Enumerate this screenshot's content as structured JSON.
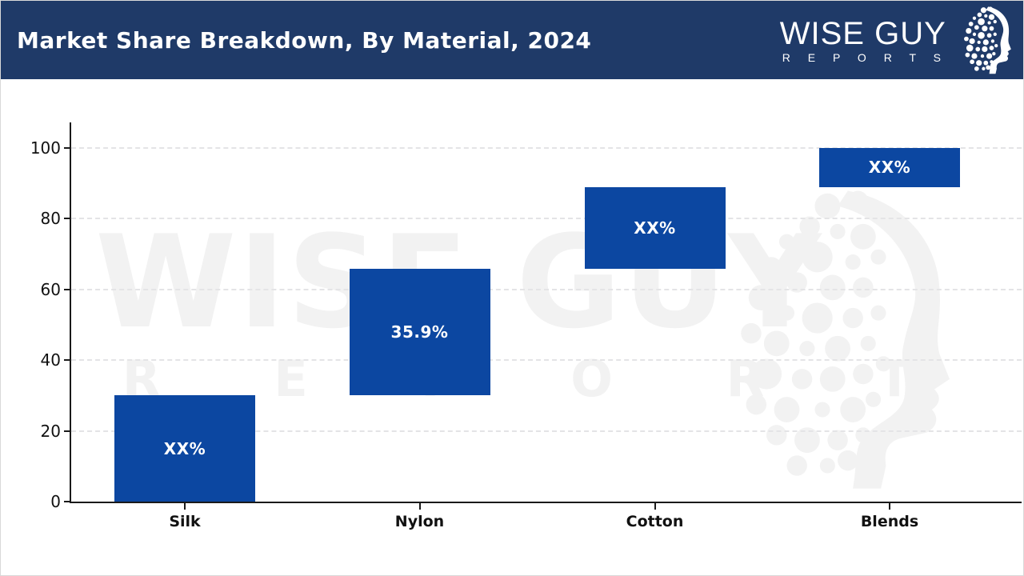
{
  "header": {
    "title": "Market Share Breakdown, By Material, 2024",
    "bg_color": "#1f3a68"
  },
  "logo": {
    "line1": "WISE GUY",
    "line2": "R E P O R T S"
  },
  "watermark": {
    "line1": "WISE GUY",
    "line2": "R E P O R T S"
  },
  "chart_data": {
    "type": "bar",
    "subtype": "floating-waterfall",
    "title": "Market Share Breakdown, By Material, 2024",
    "categories": [
      "Silk",
      "Nylon",
      "Cotton",
      "Blends"
    ],
    "segments": [
      {
        "category": "Silk",
        "from": 0,
        "to": 30,
        "label": "XX%"
      },
      {
        "category": "Nylon",
        "from": 30,
        "to": 65.9,
        "label": "35.9%"
      },
      {
        "category": "Cotton",
        "from": 65.9,
        "to": 89,
        "label": "XX%"
      },
      {
        "category": "Blends",
        "from": 89,
        "to": 100,
        "label": "XX%"
      }
    ],
    "yticks": [
      0,
      20,
      40,
      60,
      80,
      100
    ],
    "ylim": [
      0,
      107
    ],
    "xlabel": "",
    "ylabel": "",
    "grid": "horizontal-dashed",
    "legend": "none",
    "bar_color": "#0c47a1",
    "bar_label_color": "#ffffff"
  }
}
